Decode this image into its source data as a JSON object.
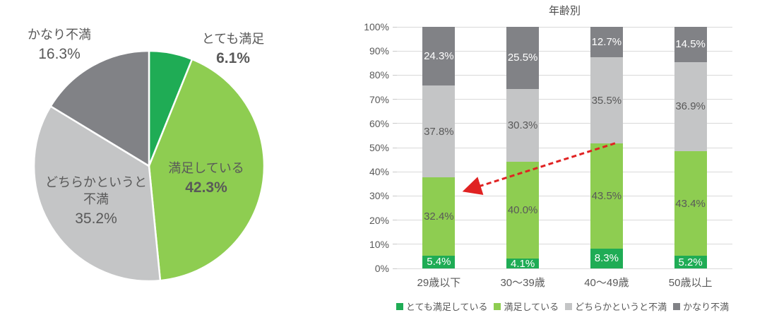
{
  "chart_data": [
    {
      "id": "overall-satisfaction-pie",
      "type": "pie",
      "title": "",
      "direction": "clockwise",
      "start_angle": "12-o-clock",
      "label_color": "#595959",
      "slices": [
        {
          "label": "とても満足",
          "value": 6.1,
          "value_label": "6.1%",
          "color": "#1fac55",
          "value_bold": true
        },
        {
          "label": "満足している",
          "value": 42.3,
          "value_label": "42.3%",
          "color": "#8ecd51",
          "value_bold": true
        },
        {
          "label": "どちらかというと不満",
          "label_line1": "どちらかというと",
          "label_line2": "不満",
          "value": 35.2,
          "value_label": "35.2%",
          "color": "#c4c5c6",
          "value_bold": false
        },
        {
          "label": "かなり不満",
          "value": 16.3,
          "value_label": "16.3%",
          "color": "#818286",
          "value_bold": false
        }
      ]
    },
    {
      "id": "by-age-stacked-bar",
      "type": "bar",
      "stacked": true,
      "title": "年齢別",
      "categories": [
        "29歳以下",
        "30～39歳",
        "40～49歳",
        "50歳以上"
      ],
      "series": [
        {
          "name": "とても満足している",
          "color": "#1fac55",
          "label_color": "#ffffff",
          "values": [
            5.4,
            4.1,
            8.3,
            5.2
          ],
          "labels": [
            "5.4%",
            "4.1%",
            "8.3%",
            "5.2%"
          ]
        },
        {
          "name": "満足している",
          "color": "#8ecd51",
          "label_color": "#595959",
          "values": [
            32.4,
            40.0,
            43.5,
            43.4
          ],
          "labels": [
            "32.4%",
            "40.0%",
            "43.5%",
            "43.4%"
          ]
        },
        {
          "name": "どちらかというと不満",
          "color": "#c4c5c6",
          "label_color": "#595959",
          "values": [
            37.8,
            30.3,
            35.5,
            36.9
          ],
          "labels": [
            "37.8%",
            "30.3%",
            "35.5%",
            "36.9%"
          ]
        },
        {
          "name": "かなり不満",
          "color": "#818286",
          "label_color": "#ffffff",
          "values": [
            24.3,
            25.5,
            12.7,
            14.5
          ],
          "labels": [
            "24.3%",
            "25.5%",
            "12.7%",
            "14.5%"
          ]
        }
      ],
      "ylim": [
        0,
        100
      ],
      "y_tick_labels": [
        "0%",
        "10%",
        "20%",
        "30%",
        "40%",
        "50%",
        "60%",
        "70%",
        "80%",
        "90%",
        "100%"
      ],
      "gridlines": true,
      "gridline_color": "#d9d9d9",
      "legend_position": "bottom",
      "annotation_arrow": {
        "description": "red dashed arrow from top of 満足している segment of 40～49歳 pointing to 満足している segment of 29歳以下",
        "color": "#e02222",
        "style": "dashed",
        "from": {
          "category_index": 2,
          "value": 51.8
        },
        "to": {
          "category_index": 0,
          "value": 32.3
        }
      }
    }
  ]
}
